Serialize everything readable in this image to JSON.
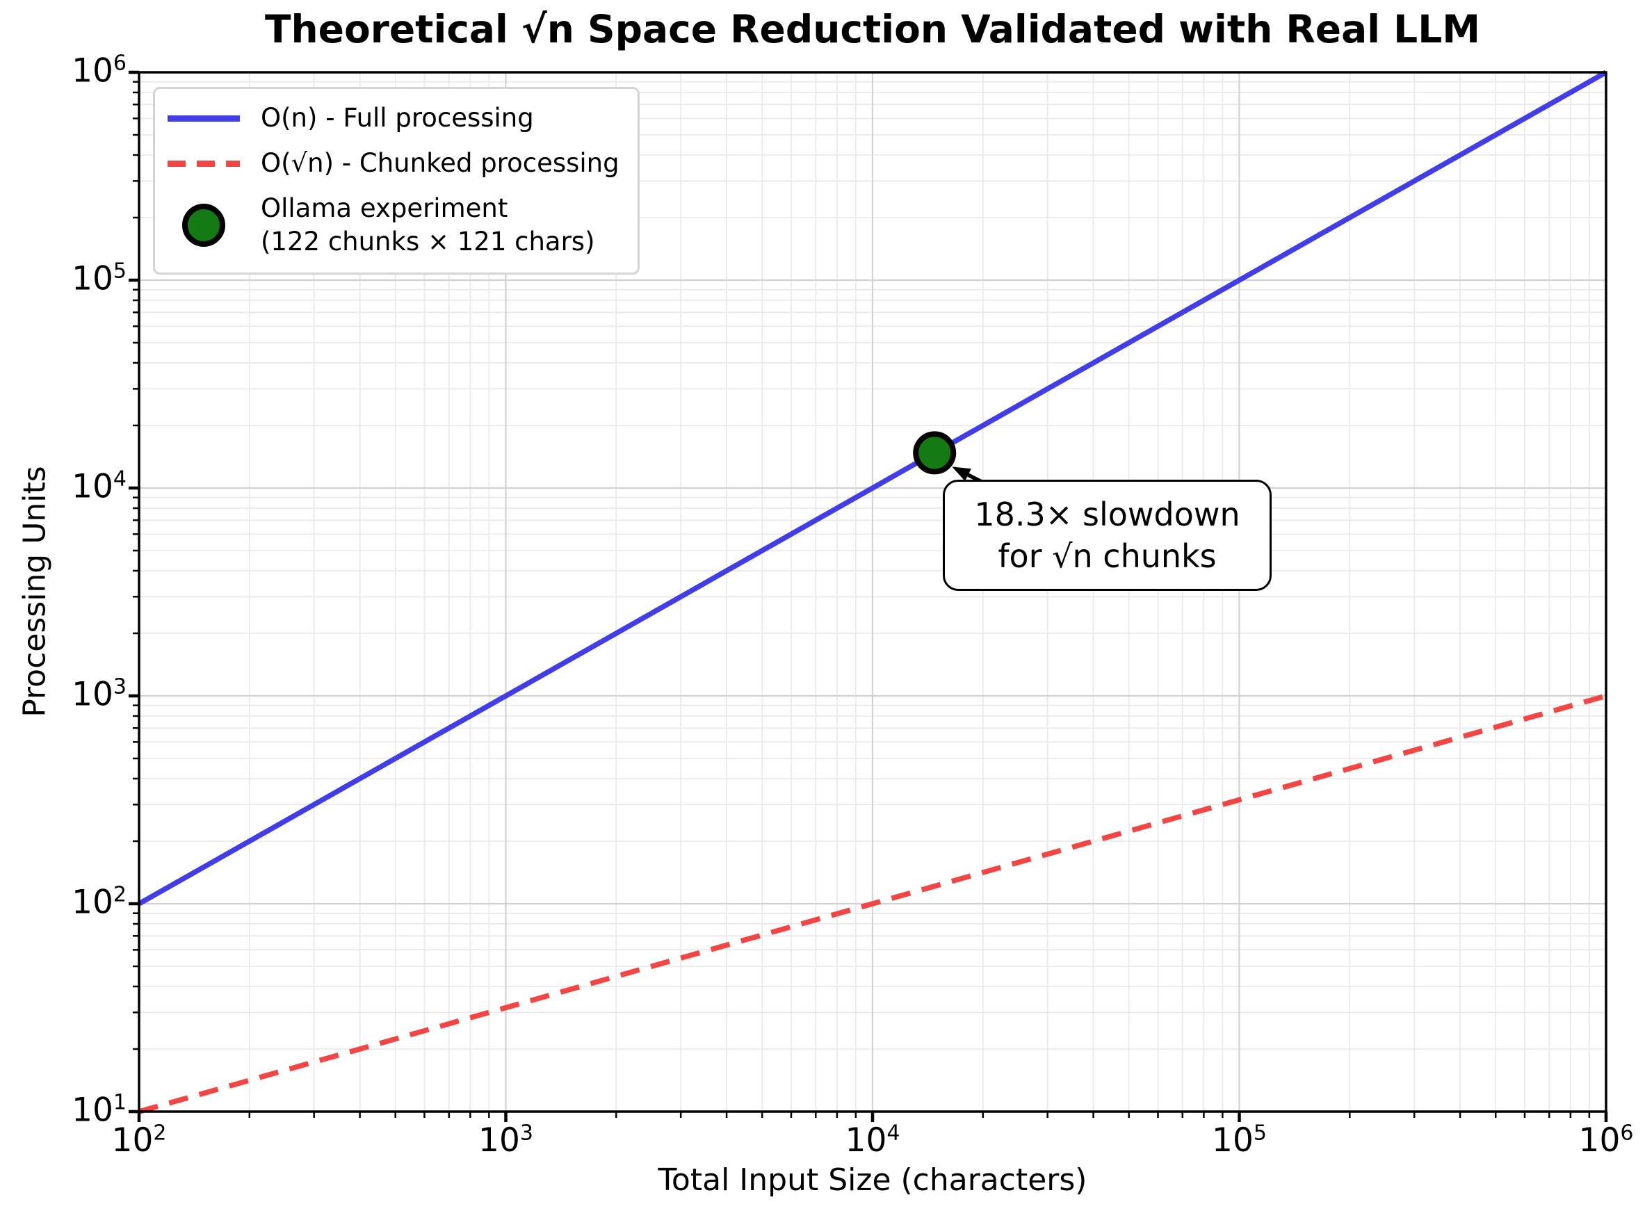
{
  "chart_data": {
    "type": "line",
    "title": "Theoretical √n Space Reduction Validated with Real LLM",
    "xlabel": "Total Input Size (characters)",
    "ylabel": "Processing Units",
    "x_scale": "log",
    "y_scale": "log",
    "xlim": [
      100,
      1000000
    ],
    "ylim": [
      10,
      1000000
    ],
    "x_tick_exponents": [
      2,
      3,
      4,
      5,
      6
    ],
    "y_tick_exponents": [
      1,
      2,
      3,
      4,
      5,
      6
    ],
    "grid": {
      "major": true,
      "minor": true
    },
    "series": [
      {
        "name": "O(n) - Full processing",
        "type": "line",
        "style": "solid",
        "color": "#413EE6",
        "x": [
          100,
          1000000
        ],
        "y": [
          100,
          1000000
        ]
      },
      {
        "name": "O(√n) - Chunked processing",
        "type": "line",
        "style": "dashed",
        "color": "#F44545",
        "x": [
          100,
          1000000
        ],
        "y": [
          10,
          1000
        ]
      },
      {
        "name": "Ollama experiment (122 chunks × 121 chars)",
        "type": "scatter",
        "color": "#147A14",
        "edge_color": "#000000",
        "x": [
          14762
        ],
        "y": [
          14762
        ]
      }
    ],
    "legend": {
      "position": "upper left",
      "items": [
        {
          "label": "O(n) - Full processing"
        },
        {
          "label": "O(√n) - Chunked processing"
        },
        {
          "label": "Ollama experiment",
          "label2": "(122 chunks × 121 chars)"
        }
      ]
    },
    "annotation": {
      "line1": "18.3× slowdown",
      "line2": "for √n chunks",
      "target": {
        "x": 14762,
        "y": 14762
      }
    },
    "colors": {
      "grid_major": "#d2d2d2",
      "grid_minor": "#e8e8e8",
      "axes": "#000000",
      "background": "#ffffff",
      "legend_border": "#d4d4d4"
    }
  }
}
